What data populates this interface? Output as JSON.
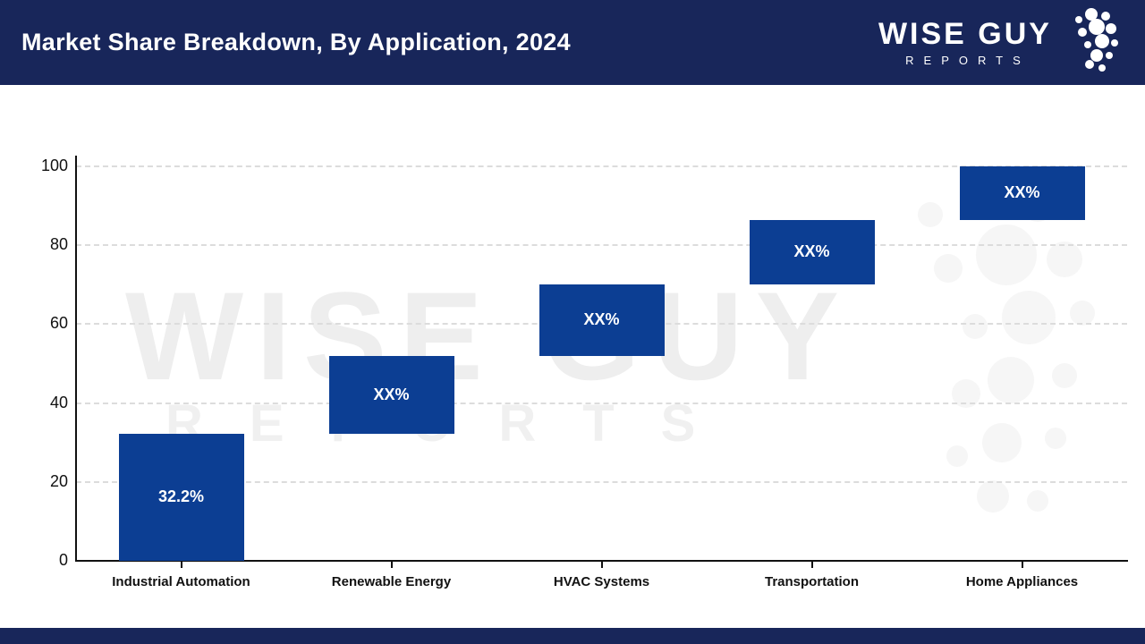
{
  "header": {
    "title": "Market Share Breakdown, By Application, 2024",
    "brand": {
      "line1": "WISE GUY",
      "line2": "REPORTS"
    }
  },
  "watermark": {
    "line1": "WISE GUY",
    "line2": "REPORTS"
  },
  "chart_data": {
    "type": "bar",
    "subtype": "waterfall",
    "title": "Market Share Breakdown, By Application, 2024",
    "categories": [
      "Industrial Automation",
      "Renewable Energy",
      "HVAC Systems",
      "Transportation",
      "Home Appliances"
    ],
    "series": [
      {
        "name": "Market Share",
        "starts": [
          0,
          32.2,
          52,
          70,
          86.5
        ],
        "ends": [
          32.2,
          52,
          70,
          86.5,
          100
        ]
      }
    ],
    "bar_labels": [
      "32.2%",
      "XX%",
      "XX%",
      "XX%",
      "XX%"
    ],
    "xlabel": "",
    "ylabel": "",
    "ylim": [
      0,
      100
    ],
    "yticks": [
      0,
      20,
      40,
      60,
      80,
      100
    ],
    "grid": "horizontal-dashed",
    "legend": "none",
    "bar_color": "#0c3e93"
  },
  "colors": {
    "header_bg": "#18265a",
    "footer_bg": "#18265a",
    "bar": "#0c3e93",
    "grid": "#dcdcdc",
    "watermark": "#eeeeee",
    "text_dark": "#111111",
    "text_light": "#ffffff"
  }
}
